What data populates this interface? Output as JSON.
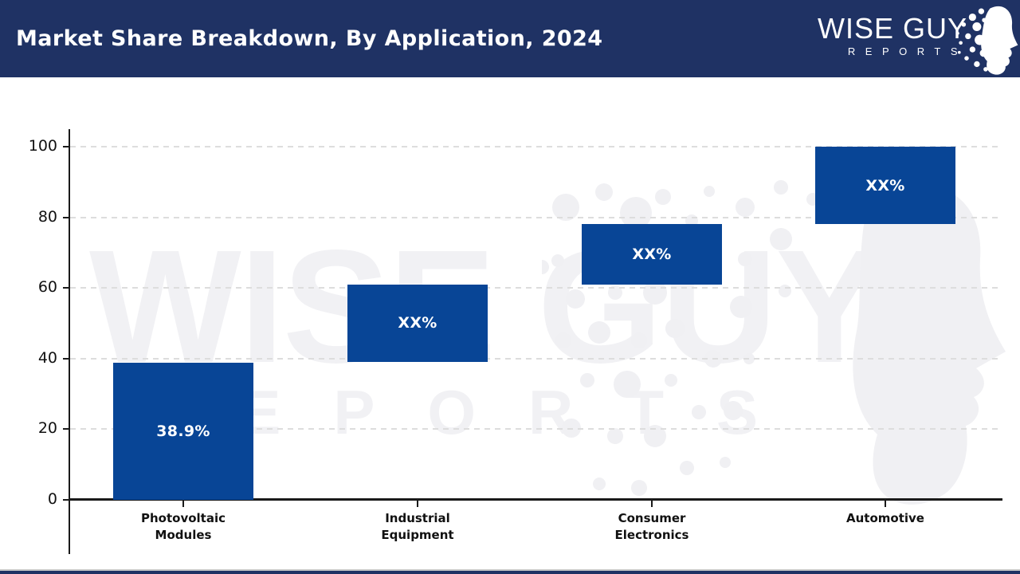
{
  "header": {
    "title": "Market Share Breakdown, By Application, 2024",
    "bg_color": "#1f3264",
    "logo": {
      "name": "WISE GUY",
      "sub": "REPORTS"
    }
  },
  "watermark": {
    "line1": "WISE GUY",
    "line2": "REPORTS"
  },
  "chart_data": {
    "type": "bar",
    "subtype": "waterfall",
    "title": "Market Share Breakdown, By Application, 2024",
    "categories": [
      [
        "Photovoltaic",
        "Modules"
      ],
      [
        "Industrial",
        "Equipment"
      ],
      [
        "Consumer",
        "Electronics"
      ],
      [
        "Automotive"
      ]
    ],
    "bars": [
      {
        "category": "Photovoltaic Modules",
        "value_label": "38.9%",
        "start": 0,
        "end": 38.9
      },
      {
        "category": "Industrial Equipment",
        "value_label": "XX%",
        "start": 39,
        "end": 61
      },
      {
        "category": "Consumer Electronics",
        "value_label": "XX%",
        "start": 61,
        "end": 78
      },
      {
        "category": "Automotive",
        "value_label": "XX%",
        "start": 78,
        "end": 100
      }
    ],
    "yticks": [
      0,
      20,
      40,
      60,
      80,
      100
    ],
    "ylim": [
      0,
      104
    ],
    "xlabel": "",
    "ylabel": "",
    "legend": null,
    "grid": true,
    "bar_color": "#084596",
    "grid_color": "#dddddd",
    "axis_color": "#1a1a1a"
  }
}
